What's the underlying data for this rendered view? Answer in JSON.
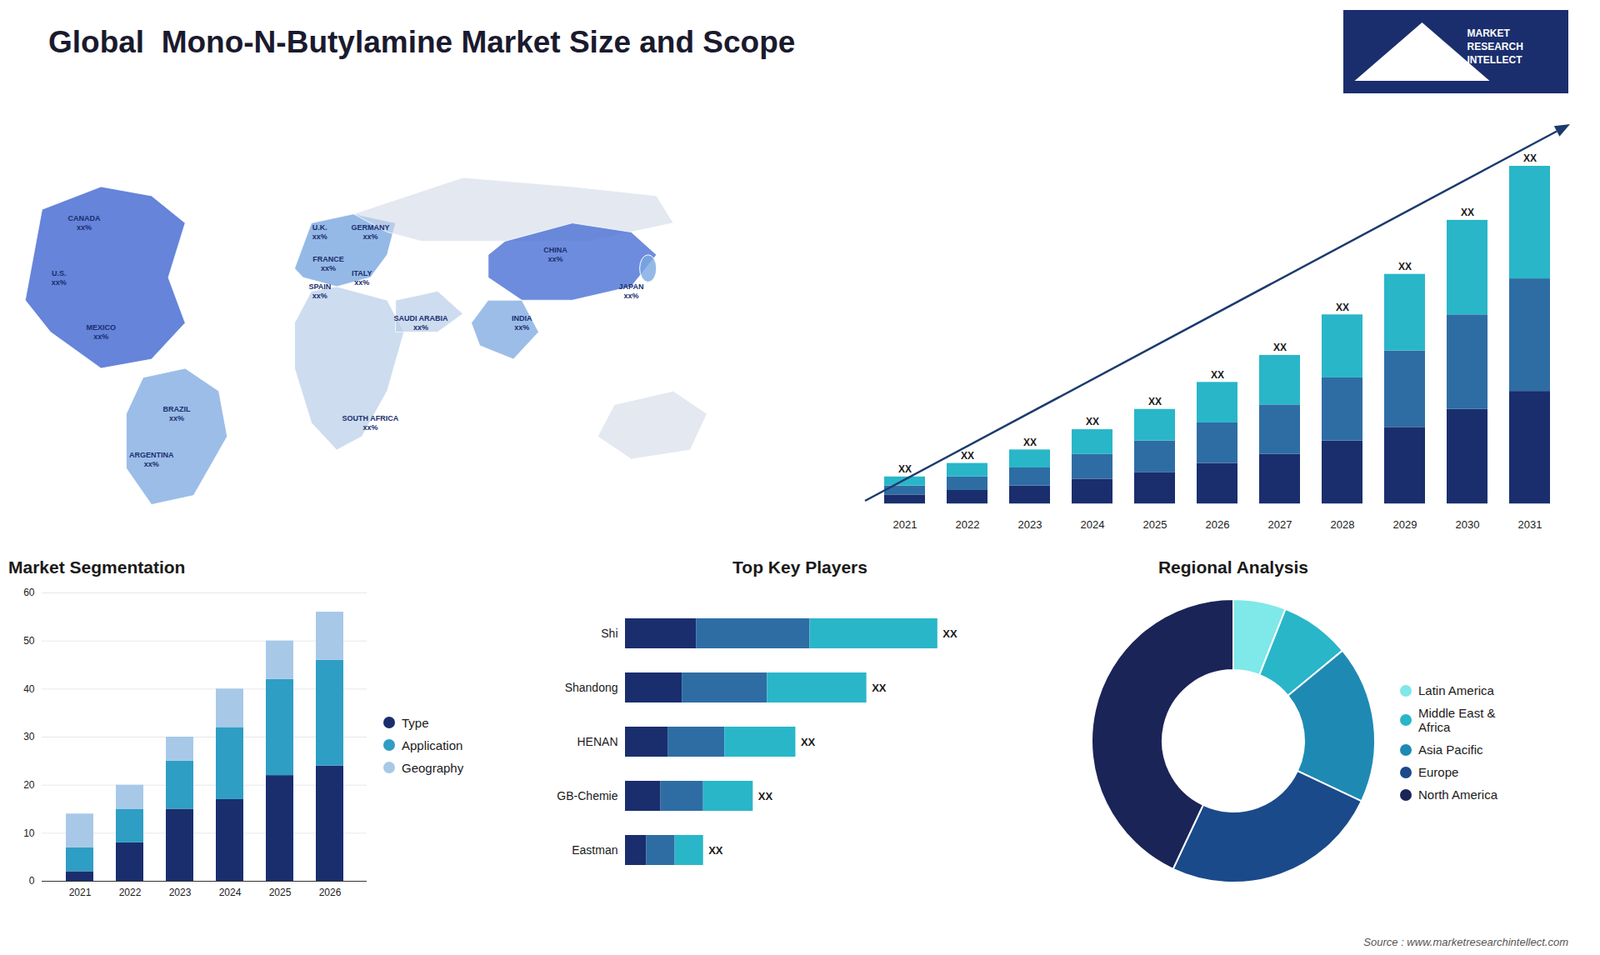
{
  "chart_data": [
    {
      "type": "map",
      "annotations": [
        "CANADA\nxx%",
        "U.S.\nxx%",
        "MEXICO\nxx%",
        "BRAZIL\nxx%",
        "ARGENTINA\nxx%",
        "U.K.\nxx%",
        "FRANCE\nxx%",
        "SPAIN\nxx%",
        "GERMANY\nxx%",
        "ITALY\nxx%",
        "SAUDI ARABIA\nxx%",
        "SOUTH AFRICA\nxx%",
        "CHINA\nxx%",
        "JAPAN\nxx%",
        "INDIA\nxx%"
      ]
    },
    {
      "type": "bar",
      "title": "Global  Mono-N-Butylamine Market Size and Scope",
      "stacked": true,
      "categories": [
        "2021",
        "2022",
        "2023",
        "2024",
        "2025",
        "2026",
        "2027",
        "2028",
        "2029",
        "2030",
        "2031"
      ],
      "series": [
        {
          "color": "#1a2e6e",
          "values": [
            2,
            3,
            4,
            5.5,
            7,
            9,
            11,
            14,
            17,
            21,
            25
          ]
        },
        {
          "color": "#2e6da4",
          "values": [
            2,
            3,
            4,
            5.5,
            7,
            9,
            11,
            14,
            17,
            21,
            25
          ]
        },
        {
          "color": "#29b6c8",
          "values": [
            2,
            3,
            4,
            5.5,
            7,
            9,
            11,
            14,
            17,
            21,
            25
          ]
        }
      ],
      "value_labels": [
        "XX",
        "XX",
        "XX",
        "XX",
        "XX",
        "XX",
        "XX",
        "XX",
        "XX",
        "XX",
        "XX"
      ],
      "ylim": [
        -2,
        85
      ],
      "tick_labels": "x",
      "annotations": [
        "Source : www.marketresearchintellect.com",
        "MARKET\nRESEARCH\nINTELLECT"
      ]
    },
    {
      "type": "bar",
      "title": "Market Segmentation",
      "stacked": true,
      "categories": [
        "2021",
        "2022",
        "2023",
        "2024",
        "2025",
        "2026"
      ],
      "series": [
        {
          "name": "Type",
          "color": "#1a2e6e",
          "values": [
            2,
            8,
            15,
            17,
            22,
            24
          ]
        },
        {
          "name": "Application",
          "color": "#2e9ec4",
          "values": [
            5,
            7,
            10,
            15,
            20,
            22
          ]
        },
        {
          "name": "Geography",
          "color": "#a8c8e8",
          "values": [
            7,
            5,
            5,
            8,
            8,
            10
          ]
        }
      ],
      "ylim": [
        0,
        60
      ],
      "yticks": [
        0,
        10,
        20,
        30,
        40,
        50,
        60
      ],
      "grid": true,
      "legend": "right"
    },
    {
      "type": "bar",
      "title": "Top Key Players",
      "orientation": "horizontal",
      "stacked": true,
      "categories": [
        "Shi",
        "Shandong",
        "HENAN",
        "GB-Chemie",
        "Eastman"
      ],
      "series": [
        {
          "color": "#1a2e6e",
          "values": [
            5,
            4,
            3,
            2.5,
            1.5
          ]
        },
        {
          "color": "#2e6da4",
          "values": [
            8,
            6,
            4,
            3,
            2
          ]
        },
        {
          "color": "#29b6c8",
          "values": [
            9,
            7,
            5,
            3.5,
            2
          ]
        }
      ],
      "value_labels": [
        "XX",
        "XX",
        "XX",
        "XX",
        "XX"
      ],
      "xlim": [
        0,
        27
      ],
      "tick_labels": "y"
    },
    {
      "type": "donut",
      "title": "Regional Analysis",
      "categories": [
        "Latin America",
        "Middle East &\nAfrica",
        "Asia Pacific",
        "Europe",
        "North America"
      ],
      "values": [
        6,
        8,
        18,
        25,
        43
      ],
      "colors": [
        "#7fe8e8",
        "#29b6c8",
        "#1e8ab4",
        "#1a4a8a",
        "#1a2457"
      ],
      "legend": "right"
    }
  ]
}
